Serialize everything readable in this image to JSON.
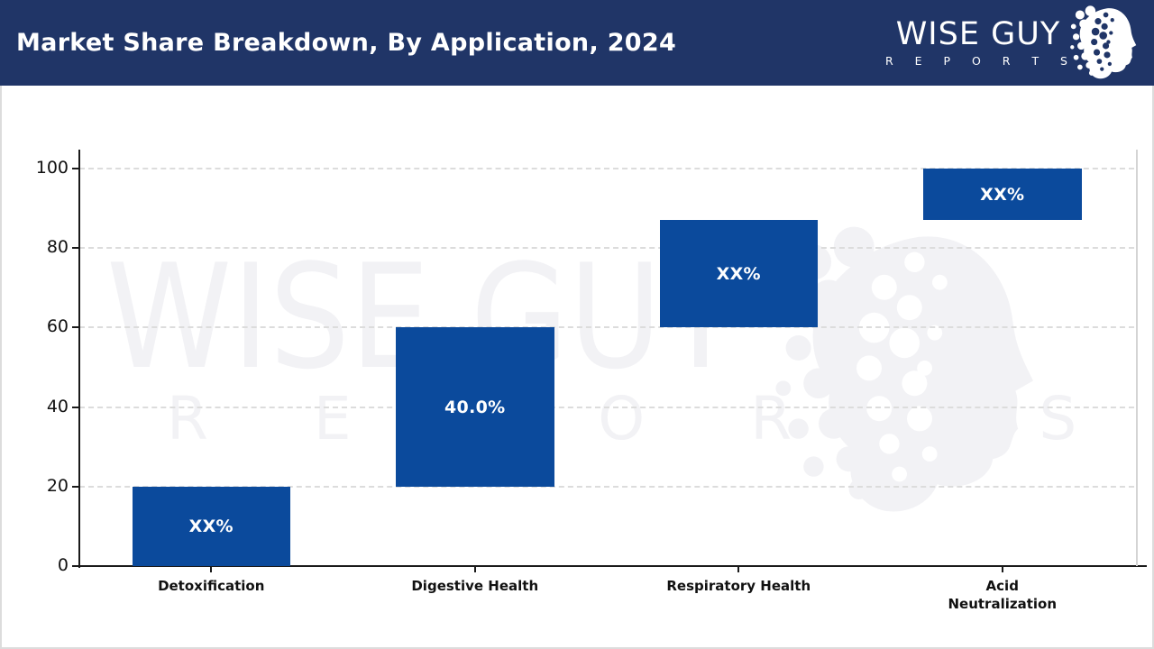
{
  "header": {
    "title": "Market Share Breakdown, By Application, 2024",
    "bg_color": "#203567",
    "logo": {
      "line1": "WISE GUY",
      "line2": "R E P O R T S"
    }
  },
  "watermark": {
    "line1": "WISE GUY",
    "line2": "R E P O R T S"
  },
  "chart_data": {
    "type": "bar",
    "subtype": "waterfall",
    "title": "Market Share Breakdown, By Application, 2024",
    "categories": [
      "Detoxification",
      "Digestive Health",
      "Respiratory Health",
      "Acid\nNeutralization"
    ],
    "segments": [
      {
        "category": "Detoxification",
        "start": 0,
        "end": 20,
        "label": "XX%"
      },
      {
        "category": "Digestive Health",
        "start": 20,
        "end": 60,
        "label": "40.0%"
      },
      {
        "category": "Respiratory Health",
        "start": 60,
        "end": 87,
        "label": "XX%"
      },
      {
        "category": "Acid Neutralization",
        "start": 87,
        "end": 100,
        "label": "XX%"
      }
    ],
    "yticks": [
      0,
      20,
      40,
      60,
      80,
      100
    ],
    "ylim": [
      0,
      100
    ],
    "xlabel": "",
    "ylabel": "",
    "bar_color": "#0b4a9c",
    "bar_label_color": "#ffffff",
    "grid": "horizontal-dashed",
    "grid_color": "#dcdcdc",
    "axis_color": "#1a1a1a",
    "legend": "none"
  }
}
